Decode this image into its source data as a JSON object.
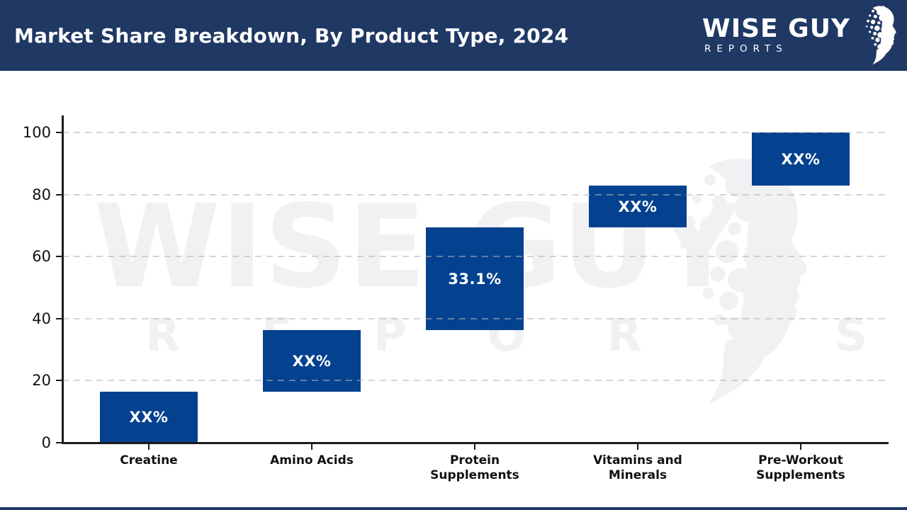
{
  "header": {
    "title": "Market Share Breakdown, By Product Type, 2024",
    "logo": {
      "brand": "WISE GUY",
      "sub": "REPORTS"
    }
  },
  "watermark": {
    "brand": "WISE GUY",
    "sub": "R E P O R T S"
  },
  "chart_data": {
    "type": "bar",
    "variant": "waterfall",
    "title": "Market Share Breakdown, By Product Type, 2024",
    "unit": "%",
    "categories": [
      [
        "Creatine"
      ],
      [
        "Amino Acids"
      ],
      [
        "Protein",
        "Supplements"
      ],
      [
        "Vitamins and",
        "Minerals"
      ],
      [
        "Pre-Workout",
        "Supplements"
      ]
    ],
    "segments": [
      {
        "name": "Creatine",
        "start": 0,
        "end": 16.4,
        "value_label": "XX%"
      },
      {
        "name": "Amino Acids",
        "start": 16.4,
        "end": 36.4,
        "value_label": "XX%"
      },
      {
        "name": "Protein Supplements",
        "start": 36.4,
        "end": 69.5,
        "value_label": "33.1%"
      },
      {
        "name": "Vitamins and Minerals",
        "start": 69.5,
        "end": 82.8,
        "value_label": "XX%"
      },
      {
        "name": "Pre-Workout Supplements",
        "start": 82.8,
        "end": 100,
        "value_label": "XX%"
      }
    ],
    "yticks": [
      0,
      20,
      40,
      60,
      80,
      100
    ],
    "ylim": [
      0,
      100
    ],
    "grid": "horizontal-dashed",
    "legend": "none",
    "bar_color": "#04418f",
    "bar_label_color": "#ffffff"
  },
  "colors": {
    "header_bg": "#1f3864",
    "footer_bar": "#1f3864",
    "background": "#ffffff",
    "bar": "#04418f",
    "axis": "#1a1a1a",
    "gridline": "#d9d9d9",
    "watermark": "#f1f1f4",
    "title_text": "#ffffff",
    "tick_text": "#111111"
  }
}
